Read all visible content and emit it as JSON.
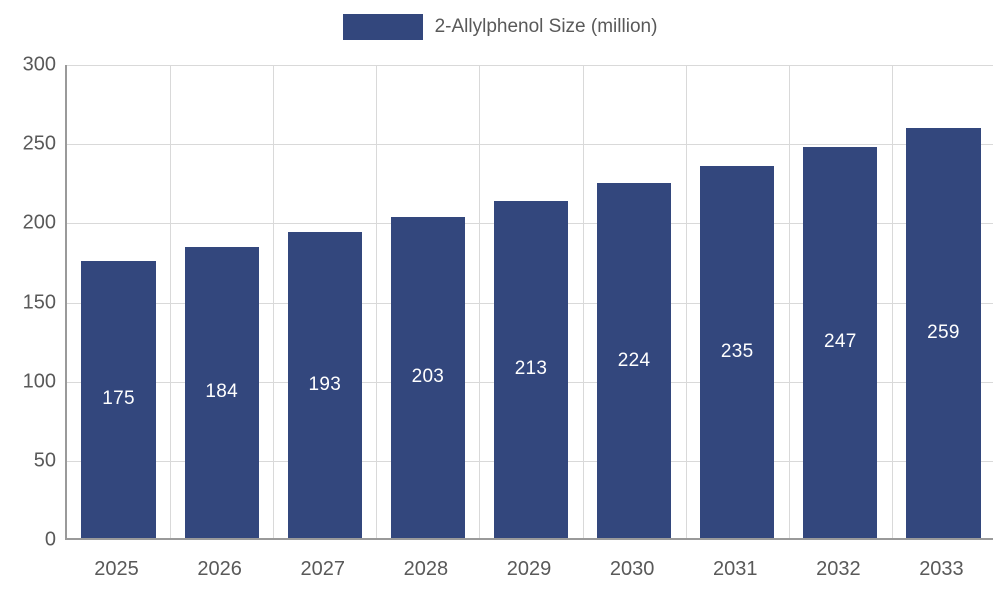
{
  "legend": {
    "label": "2-Allylphenol Size (million)",
    "swatch_color": "#33477d"
  },
  "colors": {
    "bar": "#33477d",
    "axis_text": "#595959",
    "gridline": "#d9d9d9",
    "axis_line": "#9a9a9a",
    "bar_label": "#ffffff",
    "background": "#ffffff"
  },
  "chart_data": {
    "type": "bar",
    "title": "2-Allylphenol Size (million)",
    "categories": [
      "2025",
      "2026",
      "2027",
      "2028",
      "2029",
      "2030",
      "2031",
      "2032",
      "2033"
    ],
    "values": [
      175,
      184,
      193,
      203,
      213,
      224,
      235,
      247,
      259
    ],
    "xlabel": "",
    "ylabel": "",
    "ylim": [
      0,
      300
    ],
    "yticks": [
      0,
      50,
      100,
      150,
      200,
      250,
      300
    ],
    "grid": true,
    "legend_position": "top-center",
    "bar_labels_inside": true
  }
}
